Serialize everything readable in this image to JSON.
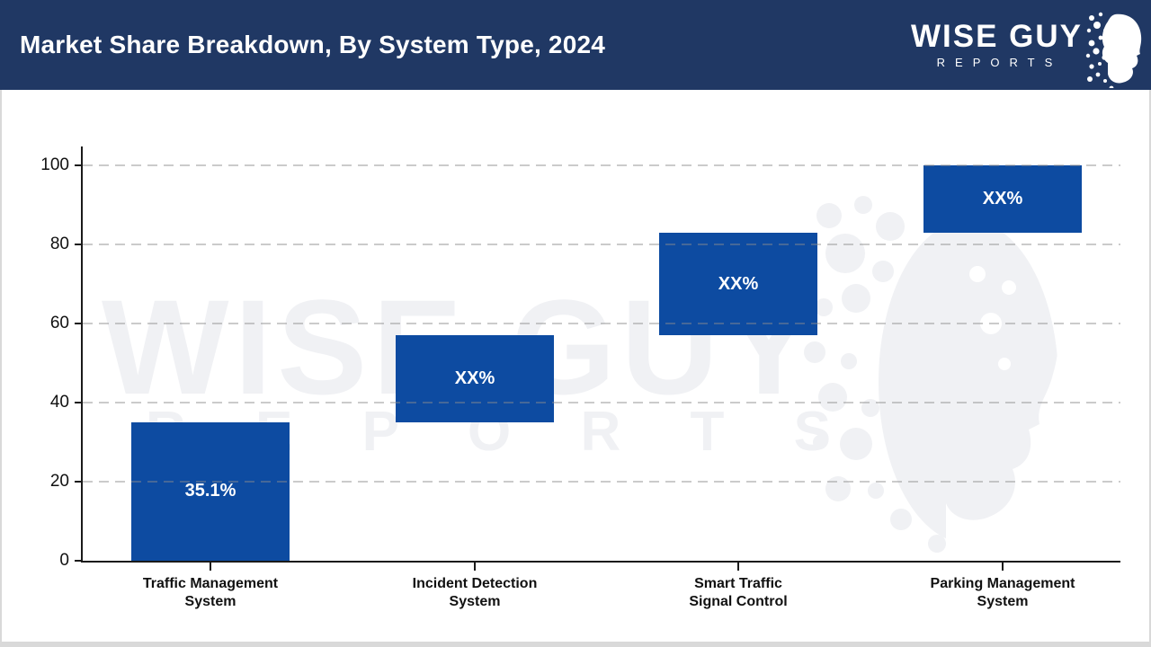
{
  "header": {
    "title": "Market Share Breakdown, By System Type, 2024",
    "bg_color": "#203864",
    "logo": {
      "line1": "WISE GUY",
      "line2": "REPORTS"
    }
  },
  "chart_data": {
    "type": "bar",
    "subtype": "waterfall",
    "title": "Market Share Breakdown, By System Type, 2024",
    "categories": [
      [
        "Traffic Management",
        "System"
      ],
      [
        "Incident Detection",
        "System"
      ],
      [
        "Smart Traffic",
        "Signal Control"
      ],
      [
        "Parking Management",
        "System"
      ]
    ],
    "segments": [
      {
        "category": "Traffic Management System",
        "start": 0,
        "end": 35.1,
        "label": "35.1%"
      },
      {
        "category": "Incident Detection System",
        "start": 35.1,
        "end": 57,
        "label": "XX%"
      },
      {
        "category": "Smart Traffic Signal Control",
        "start": 57,
        "end": 83,
        "label": "XX%"
      },
      {
        "category": "Parking Management System",
        "start": 83,
        "end": 100,
        "label": "XX%"
      }
    ],
    "yticks": [
      0,
      20,
      40,
      60,
      80,
      100
    ],
    "ylim": [
      0,
      105
    ],
    "grid": true,
    "legend": "none",
    "bar_color": "#0d4ba1",
    "label_color": "#ffffff",
    "axis_color": "#1a1a1a"
  },
  "watermark": {
    "line1": "WISE GUY",
    "line2": "R E P O R T S"
  }
}
